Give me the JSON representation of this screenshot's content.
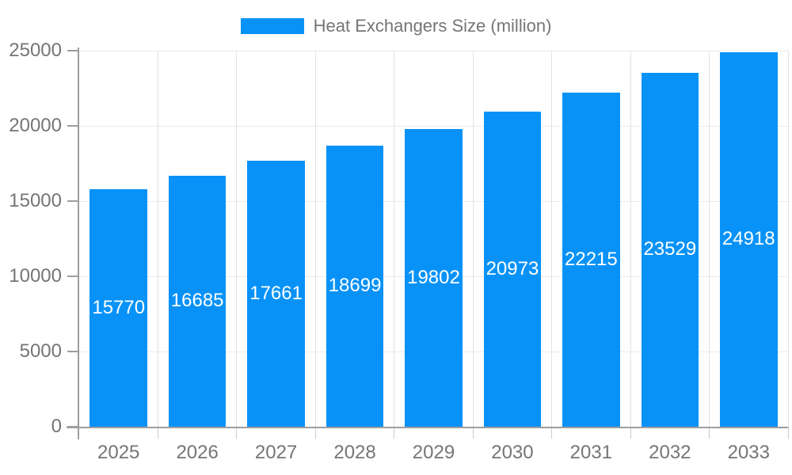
{
  "chart_data": {
    "type": "bar",
    "title": "Heat Exchangers Size (million)",
    "categories": [
      "2025",
      "2026",
      "2027",
      "2028",
      "2029",
      "2030",
      "2031",
      "2032",
      "2033"
    ],
    "series": [
      {
        "name": "Heat Exchangers Size (million)",
        "values": [
          15770,
          16685,
          17661,
          18699,
          19802,
          20973,
          22215,
          23529,
          24918
        ]
      }
    ],
    "xlabel": "",
    "ylabel": "",
    "ylim": [
      0,
      25000
    ],
    "yticks": [
      0,
      5000,
      10000,
      15000,
      20000,
      25000
    ],
    "grid": true,
    "legend_position": "top",
    "bar_color": "#0892f7",
    "bar_label_color": "#ffffff",
    "axis_text_color": "#757575",
    "axis_line_color": "#9e9e9e"
  }
}
